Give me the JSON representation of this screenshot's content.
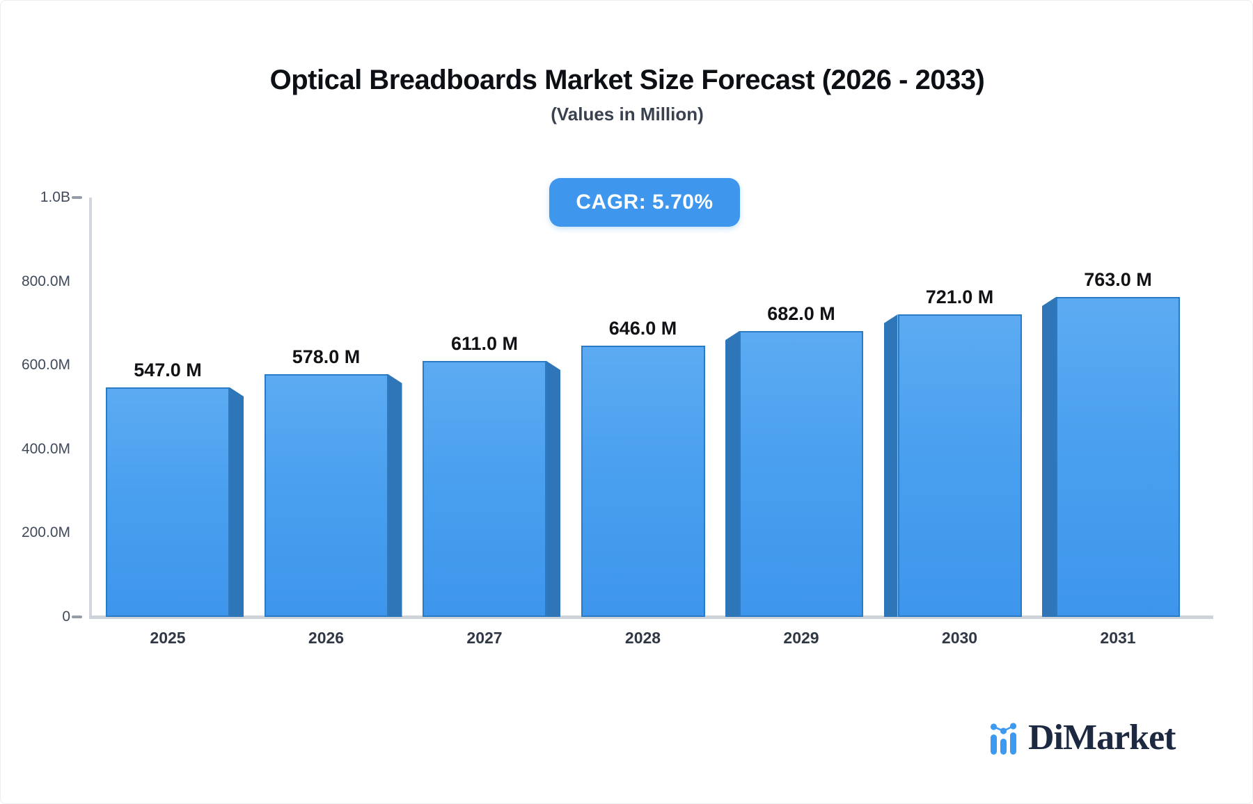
{
  "chart": {
    "title": "Optical Breadboards Market Size Forecast (2026 - 2033)",
    "subtitle": "(Values in Million)",
    "badge_label": "CAGR: 5.70%"
  },
  "chart_data": {
    "type": "bar",
    "title": "Optical Breadboards Market Size Forecast (2026 - 2033)",
    "subtitle": "(Values in Million)",
    "categories": [
      "2025",
      "2026",
      "2027",
      "2028",
      "2029",
      "2030",
      "2031"
    ],
    "values": [
      547,
      578,
      611,
      646,
      682,
      721,
      763
    ],
    "value_labels": [
      "547.0 M",
      "578.0 M",
      "611.0 M",
      "646.0 M",
      "682.0 M",
      "721.0 M",
      "763.0 M"
    ],
    "y_ticks": [
      {
        "label": "1.0B",
        "value": 1000
      },
      {
        "label": "800.0M",
        "value": 800
      },
      {
        "label": "600.0M",
        "value": 600
      },
      {
        "label": "400.0M",
        "value": 400
      },
      {
        "label": "200.0M",
        "value": 200
      },
      {
        "label": "0",
        "value": 0
      }
    ],
    "ylim": [
      0,
      1000
    ],
    "xlabel": "",
    "ylabel": "",
    "grid": false,
    "legend": false,
    "annotation": "CAGR: 5.70%"
  },
  "branding": {
    "logo_text": "DiMarket",
    "logo_icon": "bar-line-chart-icon"
  },
  "colors": {
    "bar_face_top": "#5cabf2",
    "bar_face_bottom": "#3e96ec",
    "bar_border": "#2b7ac4",
    "bar_side": "#2e76b8",
    "badge_bg": "#3e96ed",
    "badge_text": "#ffffff",
    "axis_line": "#d3d7dd",
    "title_text": "#0c0f14",
    "logo_blue": "#3d9af0",
    "logo_navy": "#1c2940"
  }
}
